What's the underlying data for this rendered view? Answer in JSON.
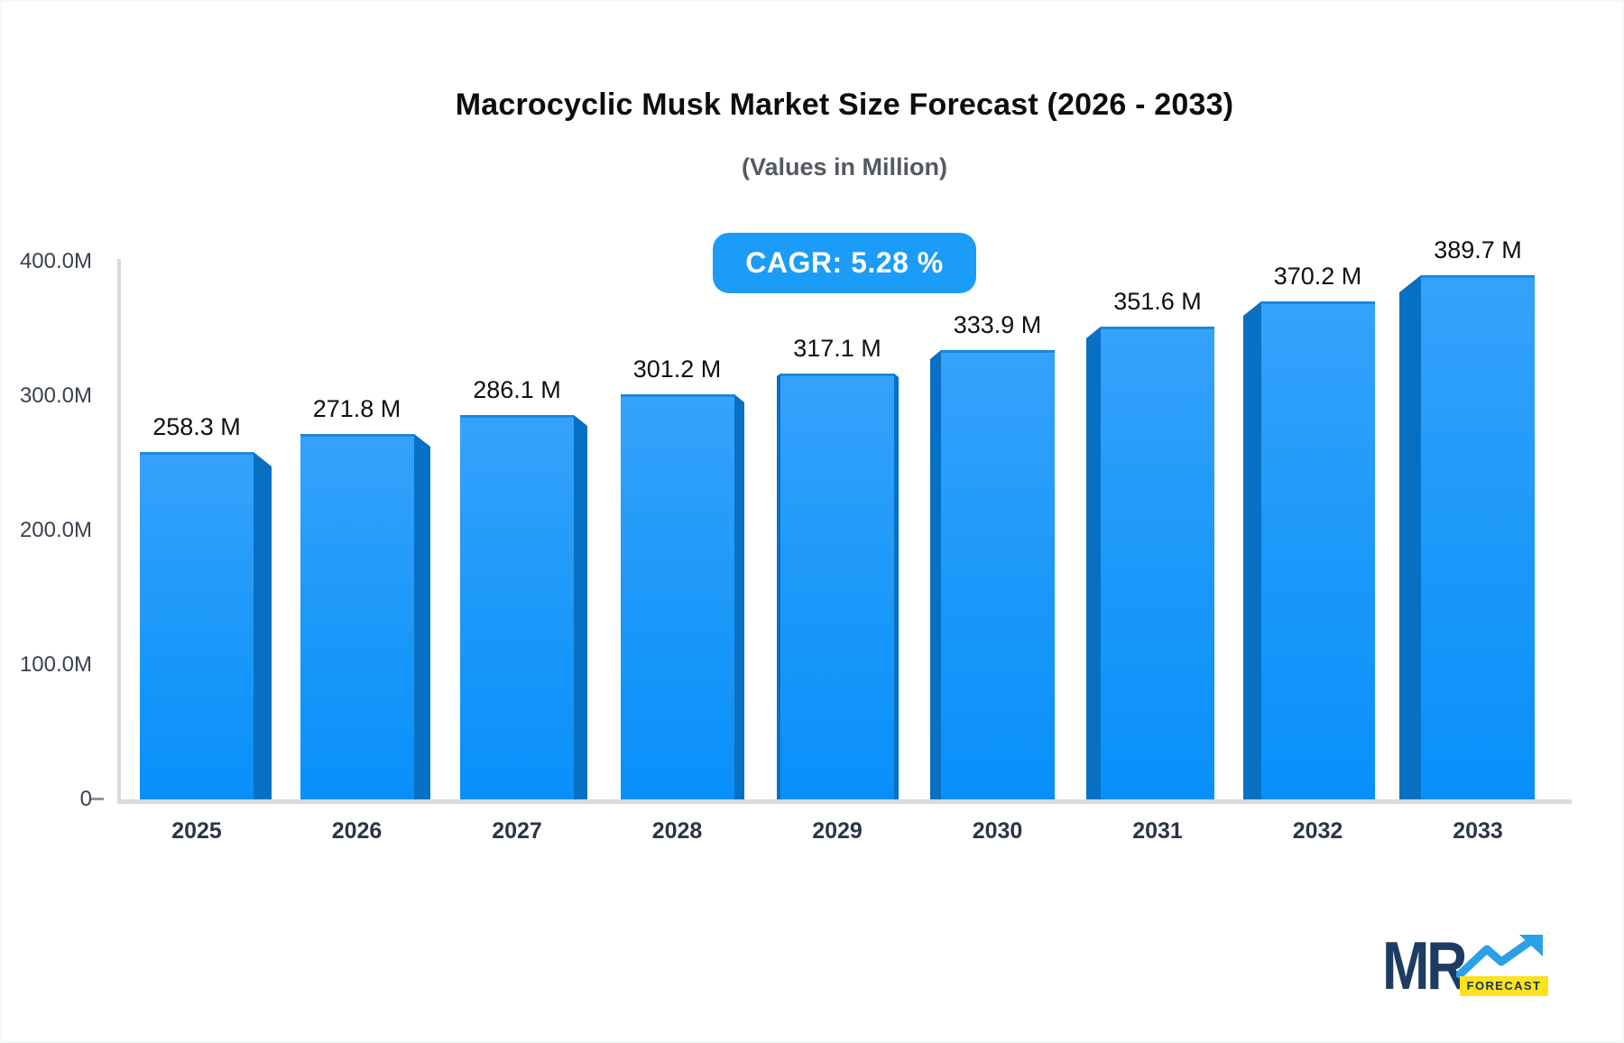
{
  "header": {
    "title": "Macrocyclic Musk Market Size Forecast (2026 - 2033)",
    "subtitle": "(Values in Million)",
    "cagr_badge": "CAGR: 5.28 %"
  },
  "chart_data": {
    "type": "bar",
    "title": "Macrocyclic Musk Market Size Forecast (2026 - 2033)",
    "subtitle": "(Values in Million)",
    "categories": [
      "2025",
      "2026",
      "2027",
      "2028",
      "2029",
      "2030",
      "2031",
      "2032",
      "2033"
    ],
    "values": [
      258.3,
      271.8,
      286.1,
      301.2,
      317.1,
      333.9,
      351.6,
      370.2,
      389.7
    ],
    "value_labels": [
      "258.3 M",
      "271.8 M",
      "286.1 M",
      "301.2 M",
      "317.1 M",
      "333.9 M",
      "351.6 M",
      "370.2 M",
      "389.7 M"
    ],
    "unit": "Million",
    "cagr_percent": 5.28,
    "ylim": [
      0,
      400
    ],
    "yticks": [
      "0",
      "100.0M",
      "200.0M",
      "300.0M",
      "400.0M"
    ],
    "ytick_values": [
      0,
      100,
      200,
      300,
      400
    ],
    "grid": false,
    "legend": false,
    "colors": {
      "bar_top": "#35a2fb",
      "bar_bottom": "#0890fa",
      "bar_side": "#0870c3",
      "bar_edge": "#1d87dc",
      "badge": "#1b9cf9",
      "axis": "#d9dade"
    }
  },
  "logo": {
    "mr": "MR",
    "forecast": "FORECAST"
  }
}
